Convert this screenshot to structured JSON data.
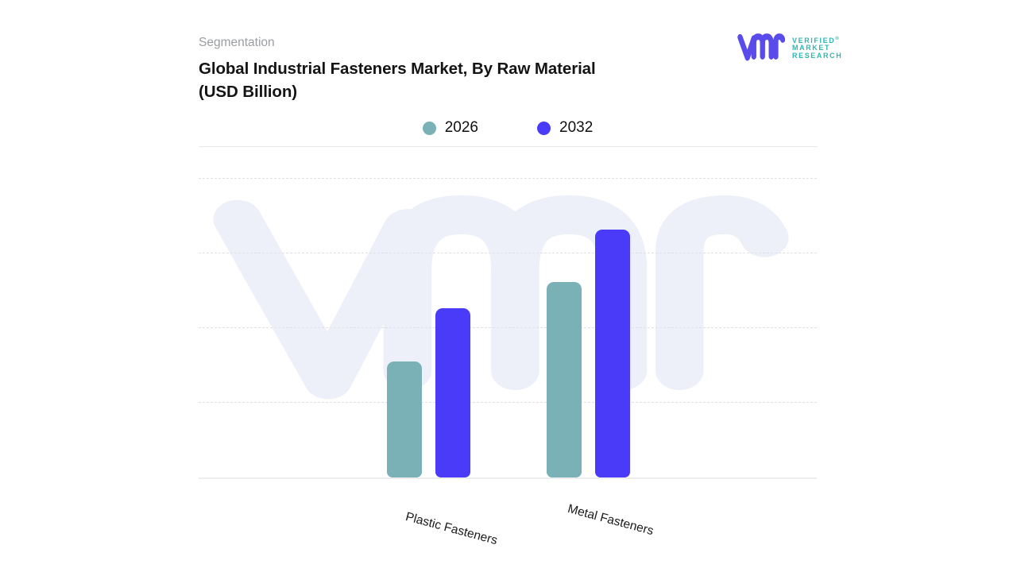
{
  "header": {
    "eyebrow": "Segmentation",
    "title_line1": "Global Industrial Fasteners Market, By Raw Material",
    "title_line2": "(USD Billion)"
  },
  "logo": {
    "line1": "VERIFIED",
    "registered": "®",
    "line2": "MARKET",
    "line3": "RESEARCH",
    "mark_color": "#5a4beb",
    "text_color": "#2fb6b0"
  },
  "legend": [
    {
      "label": "2026",
      "color": "#79b1b6"
    },
    {
      "label": "2032",
      "color": "#4a3bf8"
    }
  ],
  "watermark": {
    "name": "vmr-logo-watermark",
    "color": "#eef0f9"
  },
  "chart_data": {
    "type": "bar",
    "title": "Global Industrial Fasteners Market, By Raw Material (USD Billion)",
    "unit": "USD Billion",
    "categories": [
      "Plastic Fasteners",
      "Metal Fasteners"
    ],
    "series": [
      {
        "name": "2026",
        "color": "#79b1b6",
        "values": [
          1.55,
          2.6
        ]
      },
      {
        "name": "2032",
        "color": "#4a3bf8",
        "values": [
          2.25,
          3.3
        ]
      }
    ],
    "xlabel": "",
    "ylabel": "",
    "ylim": [
      0,
      4
    ],
    "y_tick_labels_shown": false,
    "gridlines": {
      "values": [
        1,
        2,
        3,
        4
      ],
      "style": "dashed"
    },
    "legend_position": "top-center"
  }
}
